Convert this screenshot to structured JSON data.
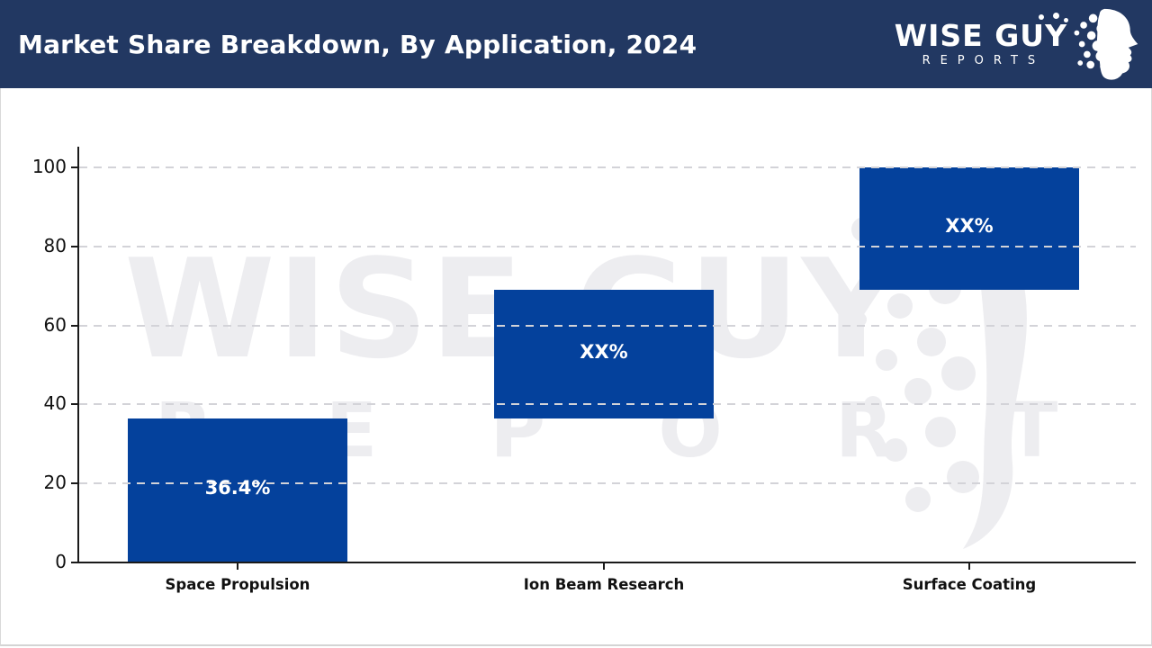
{
  "header": {
    "title": "Market Share Breakdown, By Application, 2024",
    "logo": {
      "line1": "WISE GUY",
      "line2": "REPORTS"
    }
  },
  "watermark": {
    "line1": "WISE GUY",
    "line2": "R E P O R T S"
  },
  "colors": {
    "header_bg": "#223862",
    "bar": "#04419c",
    "gridline": "#d3d3d8",
    "axis": "#1a1a1a",
    "watermark": "#ededf0",
    "value_label": "#ffffff"
  },
  "chart_data": {
    "type": "bar",
    "subtype": "floating-waterfall",
    "title": "Market Share Breakdown, By Application, 2024",
    "categories": [
      "Space Propulsion",
      "Ion Beam Research",
      "Surface Coating"
    ],
    "segments": [
      {
        "label": "36.4%",
        "start": 0,
        "end": 36.4
      },
      {
        "label": "XX%",
        "start": 36.4,
        "end": 69
      },
      {
        "label": "XX%",
        "start": 69,
        "end": 100
      }
    ],
    "yticks": [
      0,
      20,
      40,
      60,
      80,
      100
    ],
    "ylim": [
      0,
      105
    ],
    "xlabel": "",
    "ylabel": "",
    "grid": "horizontal-dashed-over-bars",
    "legend": "none"
  }
}
